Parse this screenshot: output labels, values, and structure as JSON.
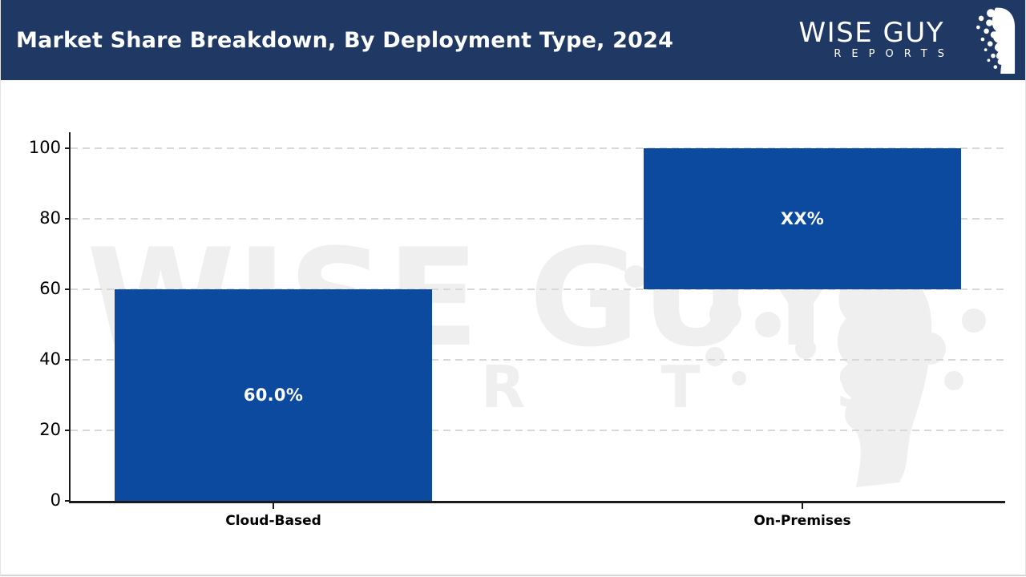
{
  "header": {
    "title": "Market Share Breakdown, By Deployment Type, 2024",
    "background_color": "#203864",
    "logo": {
      "line1": "WISE GUY",
      "line2": "REPORTS"
    }
  },
  "watermark": {
    "text_main": "WISE GUY",
    "text_sub": "R T S"
  },
  "chart_data": {
    "type": "bar",
    "title": "Market Share Breakdown, By Deployment Type, 2024",
    "xlabel": "",
    "ylabel": "",
    "categories": [
      "Cloud-Based",
      "On-Premises"
    ],
    "bars": [
      {
        "category": "Cloud-Based",
        "from": 0,
        "to": 60,
        "label": "60.0%"
      },
      {
        "category": "On-Premises",
        "from": 60,
        "to": 100,
        "label": "XX%"
      }
    ],
    "ylim": [
      0,
      100
    ],
    "yticks": [
      0,
      20,
      40,
      60,
      80,
      100
    ],
    "grid": "horizontal-dashed",
    "legend": "none",
    "bar_color": "#0c4aa0",
    "bar_label_color": "#ffffff",
    "gridline_color": "#d8d8d8",
    "axis_color": "#1a1a1a"
  }
}
